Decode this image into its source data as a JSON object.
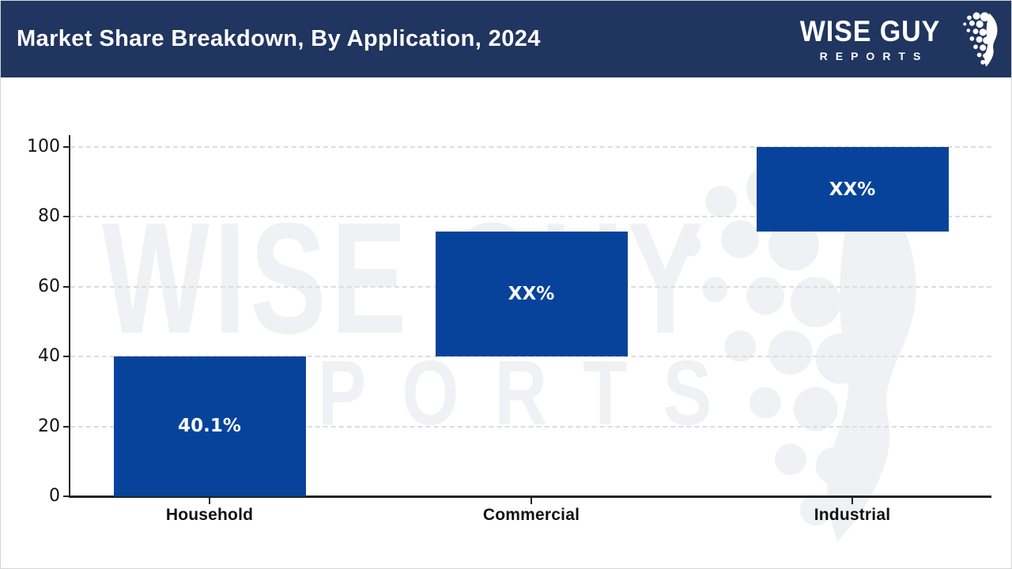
{
  "header": {
    "title": "Market Share Breakdown, By Application, 2024",
    "bg_color": "#20355F",
    "logo": {
      "wordmark": "WISE GUY",
      "reports": "REPORTS"
    }
  },
  "watermark": {
    "wordmark": "WISE GUY",
    "reports": "REPORTS"
  },
  "chart_data": {
    "type": "bar",
    "subtype": "waterfall",
    "title": "Market Share Breakdown, By Application, 2024",
    "xlabel": "",
    "ylabel": "",
    "categories": [
      "Household",
      "Commercial",
      "Industrial"
    ],
    "segments": [
      {
        "category": "Household",
        "start": 0,
        "end": 40.1,
        "label": "40.1%"
      },
      {
        "category": "Commercial",
        "start": 40.1,
        "end": 75.7,
        "label": "XX%"
      },
      {
        "category": "Industrial",
        "start": 75.7,
        "end": 100,
        "label": "XX%"
      }
    ],
    "yticks": [
      0,
      20,
      40,
      60,
      80,
      100
    ],
    "ylim": [
      0,
      103.5
    ],
    "bar_color": "#08439B",
    "grid": "horizontal-dashed",
    "legend": "none"
  }
}
